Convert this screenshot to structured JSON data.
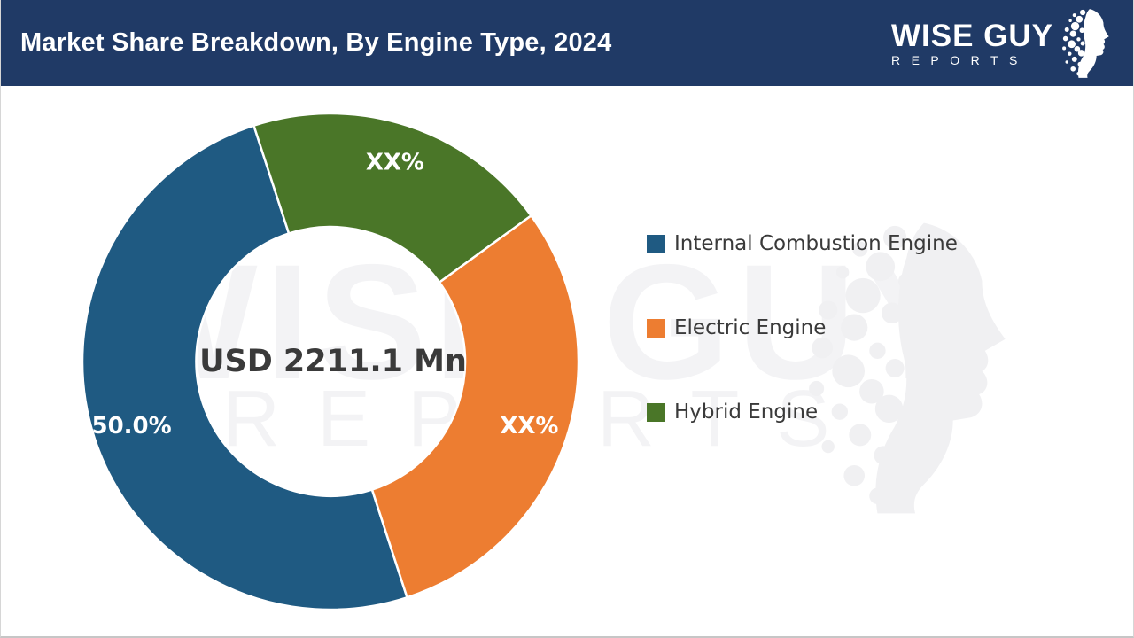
{
  "header": {
    "title": "Market Share Breakdown, By Engine Type, 2024",
    "bg_color": "#203a66",
    "logo": {
      "line1": "WISE GUY",
      "line2": "REPORTS"
    }
  },
  "chart_data": {
    "type": "pie",
    "subtype": "donut",
    "title": "Market Share Breakdown, By Engine Type, 2024",
    "center_label": "USD 2211.1 Mn",
    "legend_position": "right",
    "direction": "clockwise",
    "start_angle_clock_deg": 162,
    "categories": [
      "Internal Combustion Engine",
      "Hybrid Engine",
      "Electric Engine"
    ],
    "slices": [
      {
        "label": "Internal Combustion Engine",
        "value_pct": 50.0,
        "display_label": "50.0%",
        "color": "#1F5A82"
      },
      {
        "label": "Hybrid Engine",
        "value_pct": 20.0,
        "display_label": "XX%",
        "color": "#4A7628"
      },
      {
        "label": "Electric Engine",
        "value_pct": 30.0,
        "display_label": "XX%",
        "color": "#ED7D31"
      }
    ]
  },
  "legend": {
    "items": [
      {
        "label": "Internal Combustion Engine",
        "color": "#1F5A82"
      },
      {
        "label": "Electric Engine",
        "color": "#ED7D31"
      },
      {
        "label": "Hybrid Engine",
        "color": "#4A7628"
      }
    ]
  },
  "watermark": {
    "line1": "WISE GUY",
    "line2": "REPORTS"
  }
}
